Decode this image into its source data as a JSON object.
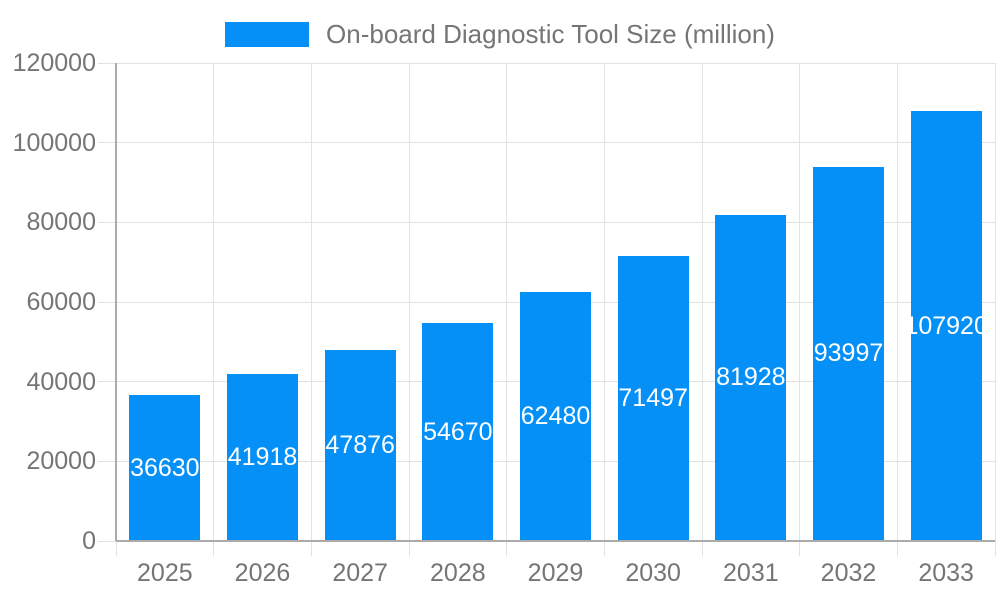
{
  "chart_data": {
    "type": "bar",
    "title": "On-board Diagnostic Tool Size (million)",
    "categories": [
      "2025",
      "2026",
      "2027",
      "2028",
      "2029",
      "2030",
      "2031",
      "2032",
      "2033"
    ],
    "series": [
      {
        "name": "On-board Diagnostic Tool Size (million)",
        "values": [
          36630,
          41918,
          47876,
          54670,
          62480,
          71497,
          81928,
          93997,
          107920
        ]
      }
    ],
    "xlabel": "",
    "ylabel": "",
    "ylim": [
      0,
      120000
    ],
    "ytick_interval": 20000,
    "ytick_labels": [
      "0",
      "20000",
      "40000",
      "60000",
      "80000",
      "100000",
      "120000"
    ],
    "bar_value_labels_visible": true,
    "grid": true,
    "legend_position": "top-center",
    "colors": {
      "bar": "#0590f8",
      "bar_value_text": "#ffffff",
      "grid_line": "#e2e2e2",
      "axis_line": "#ababab",
      "axis_tick_text": "#757575",
      "legend_text": "#757575",
      "background": "#ffffff"
    }
  }
}
